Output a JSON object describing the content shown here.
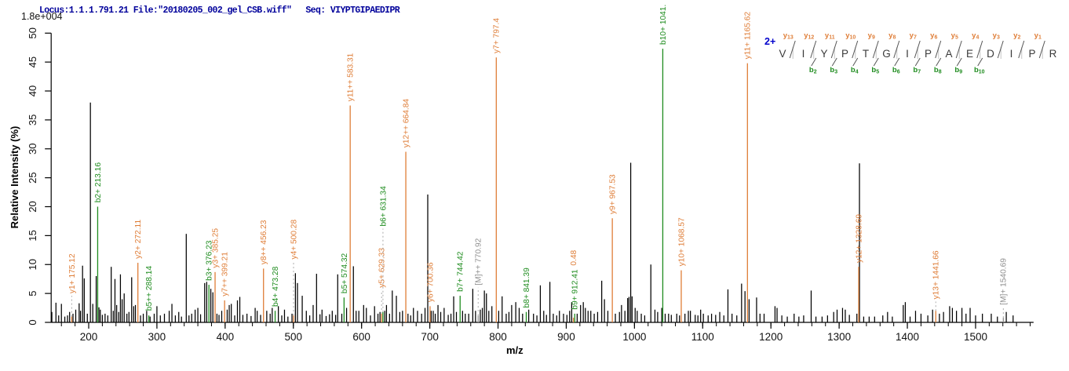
{
  "header": {
    "locus_file": "Locus:1.1.1.791.21 File:\"20180205_002_gel_CSB.wiff\"",
    "seq": "Seq: VIYPTGIPAEDIPR",
    "text_color": "#00009B"
  },
  "fragment_map": {
    "charge": "2+",
    "charge_color": "#0000CC",
    "residues": [
      "V",
      "I",
      "Y",
      "P",
      "T",
      "G",
      "I",
      "P",
      "A",
      "E",
      "D",
      "I",
      "P",
      "R"
    ],
    "y_ions": [
      "y13",
      "y12",
      "y11",
      "y10",
      "y9",
      "y8",
      "y7",
      "y6",
      "y5",
      "y4",
      "y3",
      "y2",
      "y1"
    ],
    "b_ions": [
      "b2",
      "b3",
      "b4",
      "b5",
      "b6",
      "b7",
      "b8",
      "b9",
      "b10"
    ]
  },
  "chart_data": {
    "type": "bar",
    "note": "MS/MS peptide fragmentation spectrum rendered as vertical stems",
    "xlabel": "m/z",
    "ylabel": "Relative  Intensity (%)",
    "y_axis_top_label": "1.8e+004",
    "xlim": [
      145,
      1585
    ],
    "ylim": [
      0,
      50
    ],
    "x_major_ticks": [
      200,
      300,
      400,
      500,
      600,
      700,
      800,
      900,
      1000,
      1100,
      1200,
      1300,
      1400,
      1500
    ],
    "x_minor_tick_step": 20,
    "y_tick_step": 5,
    "legend": "off",
    "grid": "off",
    "colors": {
      "y_ion": "#DF7E38",
      "b_ion": "#1F8C1F",
      "precursor": "#8F8F8F",
      "peak": "#000000",
      "leader": "#AAAAAA"
    },
    "annotated_peaks": [
      {
        "mz": 175.12,
        "label": "y1+ 175.12",
        "ion": "y",
        "height_pct": 1.0,
        "label_start_pct": 4.6,
        "dashed_leader": true
      },
      {
        "mz": 213.16,
        "label": "b2+ 213.16",
        "ion": "b",
        "height_pct": 20.0,
        "label_start_pct": 20.3,
        "dashed_leader": false
      },
      {
        "mz": 272.11,
        "label": "y2+ 272.11",
        "ion": "y",
        "height_pct": 10.3,
        "label_start_pct": 10.6,
        "dashed_leader": false
      },
      {
        "mz": 288.14,
        "label": "b5++ 288.14",
        "ion": "b",
        "height_pct": 1.2,
        "label_start_pct": 1.6,
        "dashed_leader": false
      },
      {
        "mz": 376.23,
        "label": "b3+ 376.23",
        "ion": "b",
        "height_pct": 6.5,
        "label_start_pct": 6.8,
        "dashed_leader": false
      },
      {
        "mz": 385.25,
        "label": "y3+ 385.25",
        "ion": "y",
        "height_pct": 8.7,
        "label_start_pct": 9.0,
        "dashed_leader": false
      },
      {
        "mz": 399.21,
        "label": "y7++ 399.21",
        "ion": "y",
        "height_pct": 3.8,
        "label_start_pct": 4.1,
        "dashed_leader": false
      },
      {
        "mz": 456.23,
        "label": "y8++ 456.23",
        "ion": "y",
        "height_pct": 9.3,
        "label_start_pct": 9.6,
        "dashed_leader": false
      },
      {
        "mz": 473.28,
        "label": "b4+ 473.28",
        "ion": "b",
        "height_pct": 2.0,
        "label_start_pct": 2.3,
        "dashed_leader": false
      },
      {
        "mz": 500.28,
        "label": "y4+ 500.28",
        "ion": "y",
        "height_pct": 1.2,
        "label_start_pct": 10.5,
        "dashed_leader": true
      },
      {
        "mz": 574.32,
        "label": "b5+ 574.32",
        "ion": "b",
        "height_pct": 4.3,
        "label_start_pct": 4.6,
        "dashed_leader": false
      },
      {
        "mz": 583.31,
        "label": "y11++ 583.31",
        "ion": "y",
        "height_pct": 37.5,
        "label_start_pct": 37.8,
        "dashed_leader": false
      },
      {
        "mz": 629.33,
        "label": "y5+ 629.33",
        "ion": "y",
        "height_pct": 1.5,
        "label_start_pct": 5.6,
        "dashed_leader": true
      },
      {
        "mz": 631.34,
        "label": "b6+ 631.34",
        "ion": "b",
        "height_pct": 1.8,
        "label_start_pct": 16.2,
        "dashed_leader": true
      },
      {
        "mz": 664.84,
        "label": "y12++ 664.84",
        "ion": "y",
        "height_pct": 29.5,
        "label_start_pct": 29.8,
        "dashed_leader": false
      },
      {
        "mz": 700.36,
        "label": "y6+ 700.36",
        "ion": "y",
        "height_pct": 2.8,
        "label_start_pct": 3.1,
        "dashed_leader": false
      },
      {
        "mz": 744.42,
        "label": "b7+ 744.42",
        "ion": "b",
        "height_pct": 4.6,
        "label_start_pct": 4.9,
        "dashed_leader": false
      },
      {
        "mz": 770.92,
        "label": "[M]++ 770.92",
        "ion": "precursor",
        "height_pct": 1.2,
        "label_start_pct": 6.0,
        "dashed_leader": true
      },
      {
        "mz": 797.45,
        "label": "y7+ 797.4",
        "ion": "y",
        "height_pct": 45.8,
        "label_start_pct": 46.1,
        "dashed_leader": false
      },
      {
        "mz": 841.39,
        "label": "b8+ 841.39",
        "ion": "b",
        "height_pct": 1.8,
        "label_start_pct": 2.1,
        "dashed_leader": false
      },
      {
        "mz": 910.48,
        "label": "0.48",
        "ion": "y",
        "height_pct": 0.8,
        "label_start_pct": 9.4,
        "dashed_leader": false
      },
      {
        "mz": 912.41,
        "label": "b9+ 912.41",
        "ion": "b",
        "height_pct": 1.5,
        "label_start_pct": 1.8,
        "dashed_leader": false
      },
      {
        "mz": 967.53,
        "label": "y9+ 967.53",
        "ion": "y",
        "height_pct": 18.0,
        "label_start_pct": 18.3,
        "dashed_leader": false
      },
      {
        "mz": 1041.5,
        "label": "b10+ 1041.",
        "ion": "b",
        "height_pct": 47.3,
        "label_start_pct": 47.6,
        "dashed_leader": false
      },
      {
        "mz": 1068.57,
        "label": "y10+ 1068.57",
        "ion": "y",
        "height_pct": 9.0,
        "label_start_pct": 9.3,
        "dashed_leader": false
      },
      {
        "mz": 1165.62,
        "label": "y11+ 1165.62",
        "ion": "y",
        "height_pct": 44.8,
        "label_start_pct": 45.1,
        "dashed_leader": false
      },
      {
        "mz": 1328.69,
        "label": "y12+ 1328.69",
        "ion": "y",
        "height_pct": 9.6,
        "label_start_pct": 9.9,
        "dashed_leader": false
      },
      {
        "mz": 1441.66,
        "label": "y13+ 1441.66",
        "ion": "y",
        "height_pct": 2.0,
        "label_start_pct": 3.6,
        "dashed_leader": true
      },
      {
        "mz": 1540.69,
        "label": "[M]+ 1540.69",
        "ion": "precursor",
        "height_pct": 0.8,
        "label_start_pct": 2.6,
        "dashed_leader": true
      }
    ],
    "peaks": [
      [
        146,
        1.8
      ],
      [
        152,
        3.4
      ],
      [
        156,
        1.2
      ],
      [
        160,
        3.2
      ],
      [
        165,
        1.0
      ],
      [
        169,
        1.2
      ],
      [
        172,
        1.8
      ],
      [
        177,
        1.5
      ],
      [
        181,
        2.2
      ],
      [
        186,
        3.3
      ],
      [
        188,
        2.0
      ],
      [
        191,
        9.8
      ],
      [
        193.5,
        7.6
      ],
      [
        198,
        1.5
      ],
      [
        202.5,
        38.0
      ],
      [
        206,
        3.2
      ],
      [
        211,
        8.0
      ],
      [
        215,
        2.6
      ],
      [
        217,
        2.2
      ],
      [
        220,
        1.3
      ],
      [
        224,
        1.5
      ],
      [
        228,
        1.2
      ],
      [
        233,
        9.6
      ],
      [
        236,
        2.0
      ],
      [
        238.5,
        7.5
      ],
      [
        241,
        3.0
      ],
      [
        244,
        1.8
      ],
      [
        246.5,
        8.3
      ],
      [
        249,
        4.0
      ],
      [
        252,
        5.0
      ],
      [
        256,
        1.5
      ],
      [
        259,
        1.8
      ],
      [
        263,
        7.8
      ],
      [
        266,
        2.8
      ],
      [
        268.5,
        3.0
      ],
      [
        276,
        1.2
      ],
      [
        280,
        1.5
      ],
      [
        285,
        2.0
      ],
      [
        290,
        1.0
      ],
      [
        296,
        1.5
      ],
      [
        300,
        2.8
      ],
      [
        305,
        1.2
      ],
      [
        311,
        1.5
      ],
      [
        318,
        2.0
      ],
      [
        322,
        3.2
      ],
      [
        327,
        1.2
      ],
      [
        332,
        1.8
      ],
      [
        336,
        1.0
      ],
      [
        343,
        15.3
      ],
      [
        347,
        1.2
      ],
      [
        351,
        1.5
      ],
      [
        356,
        2.2
      ],
      [
        360,
        2.5
      ],
      [
        364,
        1.4
      ],
      [
        370,
        6.8
      ],
      [
        373,
        7.0
      ],
      [
        379,
        5.8
      ],
      [
        382,
        5.2
      ],
      [
        388,
        1.5
      ],
      [
        391,
        1.3
      ],
      [
        395,
        2.0
      ],
      [
        403,
        2.2
      ],
      [
        406,
        3.0
      ],
      [
        409,
        3.2
      ],
      [
        414,
        1.2
      ],
      [
        418,
        3.8
      ],
      [
        421.5,
        4.4
      ],
      [
        426,
        1.3
      ],
      [
        432,
        1.5
      ],
      [
        438,
        1.1
      ],
      [
        444,
        2.5
      ],
      [
        447,
        2.0
      ],
      [
        452,
        1.3
      ],
      [
        461,
        2.0
      ],
      [
        466,
        1.5
      ],
      [
        469,
        2.5
      ],
      [
        478,
        2.8
      ],
      [
        483,
        1.2
      ],
      [
        487,
        2.2
      ],
      [
        492,
        1.0
      ],
      [
        498,
        1.5
      ],
      [
        503,
        8.5
      ],
      [
        506,
        6.8
      ],
      [
        513,
        4.6
      ],
      [
        519,
        2.0
      ],
      [
        524,
        1.2
      ],
      [
        529,
        3.0
      ],
      [
        534,
        8.4
      ],
      [
        539,
        1.4
      ],
      [
        542,
        2.2
      ],
      [
        548,
        1.1
      ],
      [
        553,
        1.4
      ],
      [
        557,
        2.0
      ],
      [
        562,
        1.3
      ],
      [
        565,
        8.3
      ],
      [
        571,
        1.5
      ],
      [
        578,
        2.5
      ],
      [
        588,
        9.7
      ],
      [
        592,
        2.0
      ],
      [
        596,
        2.0
      ],
      [
        603,
        3.0
      ],
      [
        607,
        2.5
      ],
      [
        613,
        1.2
      ],
      [
        619,
        2.8
      ],
      [
        624,
        1.5
      ],
      [
        627,
        1.8
      ],
      [
        634,
        2.0
      ],
      [
        636.5,
        3.0
      ],
      [
        641,
        1.5
      ],
      [
        645,
        5.5
      ],
      [
        651,
        4.6
      ],
      [
        656,
        1.8
      ],
      [
        660,
        2.0
      ],
      [
        668,
        1.5
      ],
      [
        672,
        1.2
      ],
      [
        676,
        2.5
      ],
      [
        682,
        2.0
      ],
      [
        688,
        1.5
      ],
      [
        693,
        2.5
      ],
      [
        697,
        22.1
      ],
      [
        702,
        2.0
      ],
      [
        705,
        2.0
      ],
      [
        708,
        1.5
      ],
      [
        712,
        3.0
      ],
      [
        716,
        1.8
      ],
      [
        721,
        2.5
      ],
      [
        727,
        1.3
      ],
      [
        731,
        1.5
      ],
      [
        735,
        4.5
      ],
      [
        739,
        1.8
      ],
      [
        748,
        2.0
      ],
      [
        752,
        1.5
      ],
      [
        757,
        1.5
      ],
      [
        763,
        5.8
      ],
      [
        767,
        2.0
      ],
      [
        774,
        2.2
      ],
      [
        777,
        2.5
      ],
      [
        780,
        5.5
      ],
      [
        783,
        5.0
      ],
      [
        786.5,
        2.0
      ],
      [
        791,
        2.8
      ],
      [
        801,
        2.0
      ],
      [
        806,
        4.5
      ],
      [
        812,
        1.5
      ],
      [
        816,
        1.8
      ],
      [
        820,
        3.0
      ],
      [
        826,
        3.5
      ],
      [
        831,
        2.5
      ],
      [
        836,
        1.5
      ],
      [
        845,
        2.2
      ],
      [
        852,
        1.5
      ],
      [
        857,
        1.2
      ],
      [
        862,
        6.4
      ],
      [
        867,
        2.0
      ],
      [
        871,
        1.3
      ],
      [
        876,
        7.0
      ],
      [
        881,
        1.5
      ],
      [
        886,
        1.2
      ],
      [
        890,
        2.0
      ],
      [
        896,
        1.5
      ],
      [
        901,
        1.3
      ],
      [
        905,
        2.0
      ],
      [
        908,
        3.5
      ],
      [
        916,
        1.5
      ],
      [
        921,
        3.0
      ],
      [
        925,
        3.5
      ],
      [
        928,
        2.5
      ],
      [
        932,
        2.0
      ],
      [
        936,
        2.0
      ],
      [
        941,
        1.5
      ],
      [
        946,
        1.8
      ],
      [
        952,
        7.2
      ],
      [
        956,
        4.0
      ],
      [
        961,
        2.0
      ],
      [
        972,
        1.5
      ],
      [
        978,
        1.8
      ],
      [
        981,
        3.0
      ],
      [
        986,
        2.0
      ],
      [
        990,
        4.2
      ],
      [
        992,
        4.4
      ],
      [
        994.5,
        27.6
      ],
      [
        996.5,
        4.5
      ],
      [
        1001,
        2.5
      ],
      [
        1004,
        2.0
      ],
      [
        1010,
        1.5
      ],
      [
        1015,
        1.2
      ],
      [
        1024,
        10.0
      ],
      [
        1030,
        2.2
      ],
      [
        1034,
        1.8
      ],
      [
        1040,
        2.5
      ],
      [
        1045,
        1.5
      ],
      [
        1050,
        1.5
      ],
      [
        1054,
        1.3
      ],
      [
        1062,
        1.5
      ],
      [
        1066,
        1.2
      ],
      [
        1074,
        1.5
      ],
      [
        1079,
        2.0
      ],
      [
        1082,
        2.0
      ],
      [
        1089,
        1.3
      ],
      [
        1093,
        1.2
      ],
      [
        1097,
        2.2
      ],
      [
        1101,
        1.5
      ],
      [
        1108,
        1.2
      ],
      [
        1113,
        1.5
      ],
      [
        1119,
        1.3
      ],
      [
        1125,
        1.8
      ],
      [
        1131,
        1.2
      ],
      [
        1137,
        5.7
      ],
      [
        1143,
        1.5
      ],
      [
        1150,
        1.2
      ],
      [
        1157,
        6.7
      ],
      [
        1162,
        5.4
      ],
      [
        1168,
        4.0
      ],
      [
        1179,
        4.3
      ],
      [
        1184,
        1.5
      ],
      [
        1190,
        1.5
      ],
      [
        1206,
        2.8
      ],
      [
        1209,
        2.5
      ],
      [
        1216,
        1.2
      ],
      [
        1224,
        1.0
      ],
      [
        1234,
        1.5
      ],
      [
        1241,
        1.0
      ],
      [
        1248,
        1.2
      ],
      [
        1259,
        5.5
      ],
      [
        1266,
        1.0
      ],
      [
        1275,
        1.0
      ],
      [
        1283,
        1.2
      ],
      [
        1292,
        1.8
      ],
      [
        1297,
        2.2
      ],
      [
        1305,
        2.5
      ],
      [
        1309,
        2.2
      ],
      [
        1315,
        1.3
      ],
      [
        1326,
        1.5
      ],
      [
        1329.8,
        27.5
      ],
      [
        1336,
        1.0
      ],
      [
        1344,
        1.0
      ],
      [
        1352,
        1.0
      ],
      [
        1364,
        1.2
      ],
      [
        1371,
        1.8
      ],
      [
        1378,
        1.0
      ],
      [
        1394,
        3.0
      ],
      [
        1397,
        3.5
      ],
      [
        1404,
        1.0
      ],
      [
        1412,
        2.0
      ],
      [
        1420,
        1.5
      ],
      [
        1430,
        1.2
      ],
      [
        1437,
        2.2
      ],
      [
        1447,
        1.5
      ],
      [
        1453,
        1.8
      ],
      [
        1462,
        2.8
      ],
      [
        1466,
        2.5
      ],
      [
        1472,
        2.0
      ],
      [
        1480,
        2.5
      ],
      [
        1486,
        1.5
      ],
      [
        1492,
        2.5
      ],
      [
        1500,
        1.2
      ],
      [
        1510,
        1.5
      ],
      [
        1523,
        1.5
      ],
      [
        1532,
        1.0
      ],
      [
        1545,
        1.8
      ],
      [
        1555,
        1.2
      ]
    ]
  }
}
